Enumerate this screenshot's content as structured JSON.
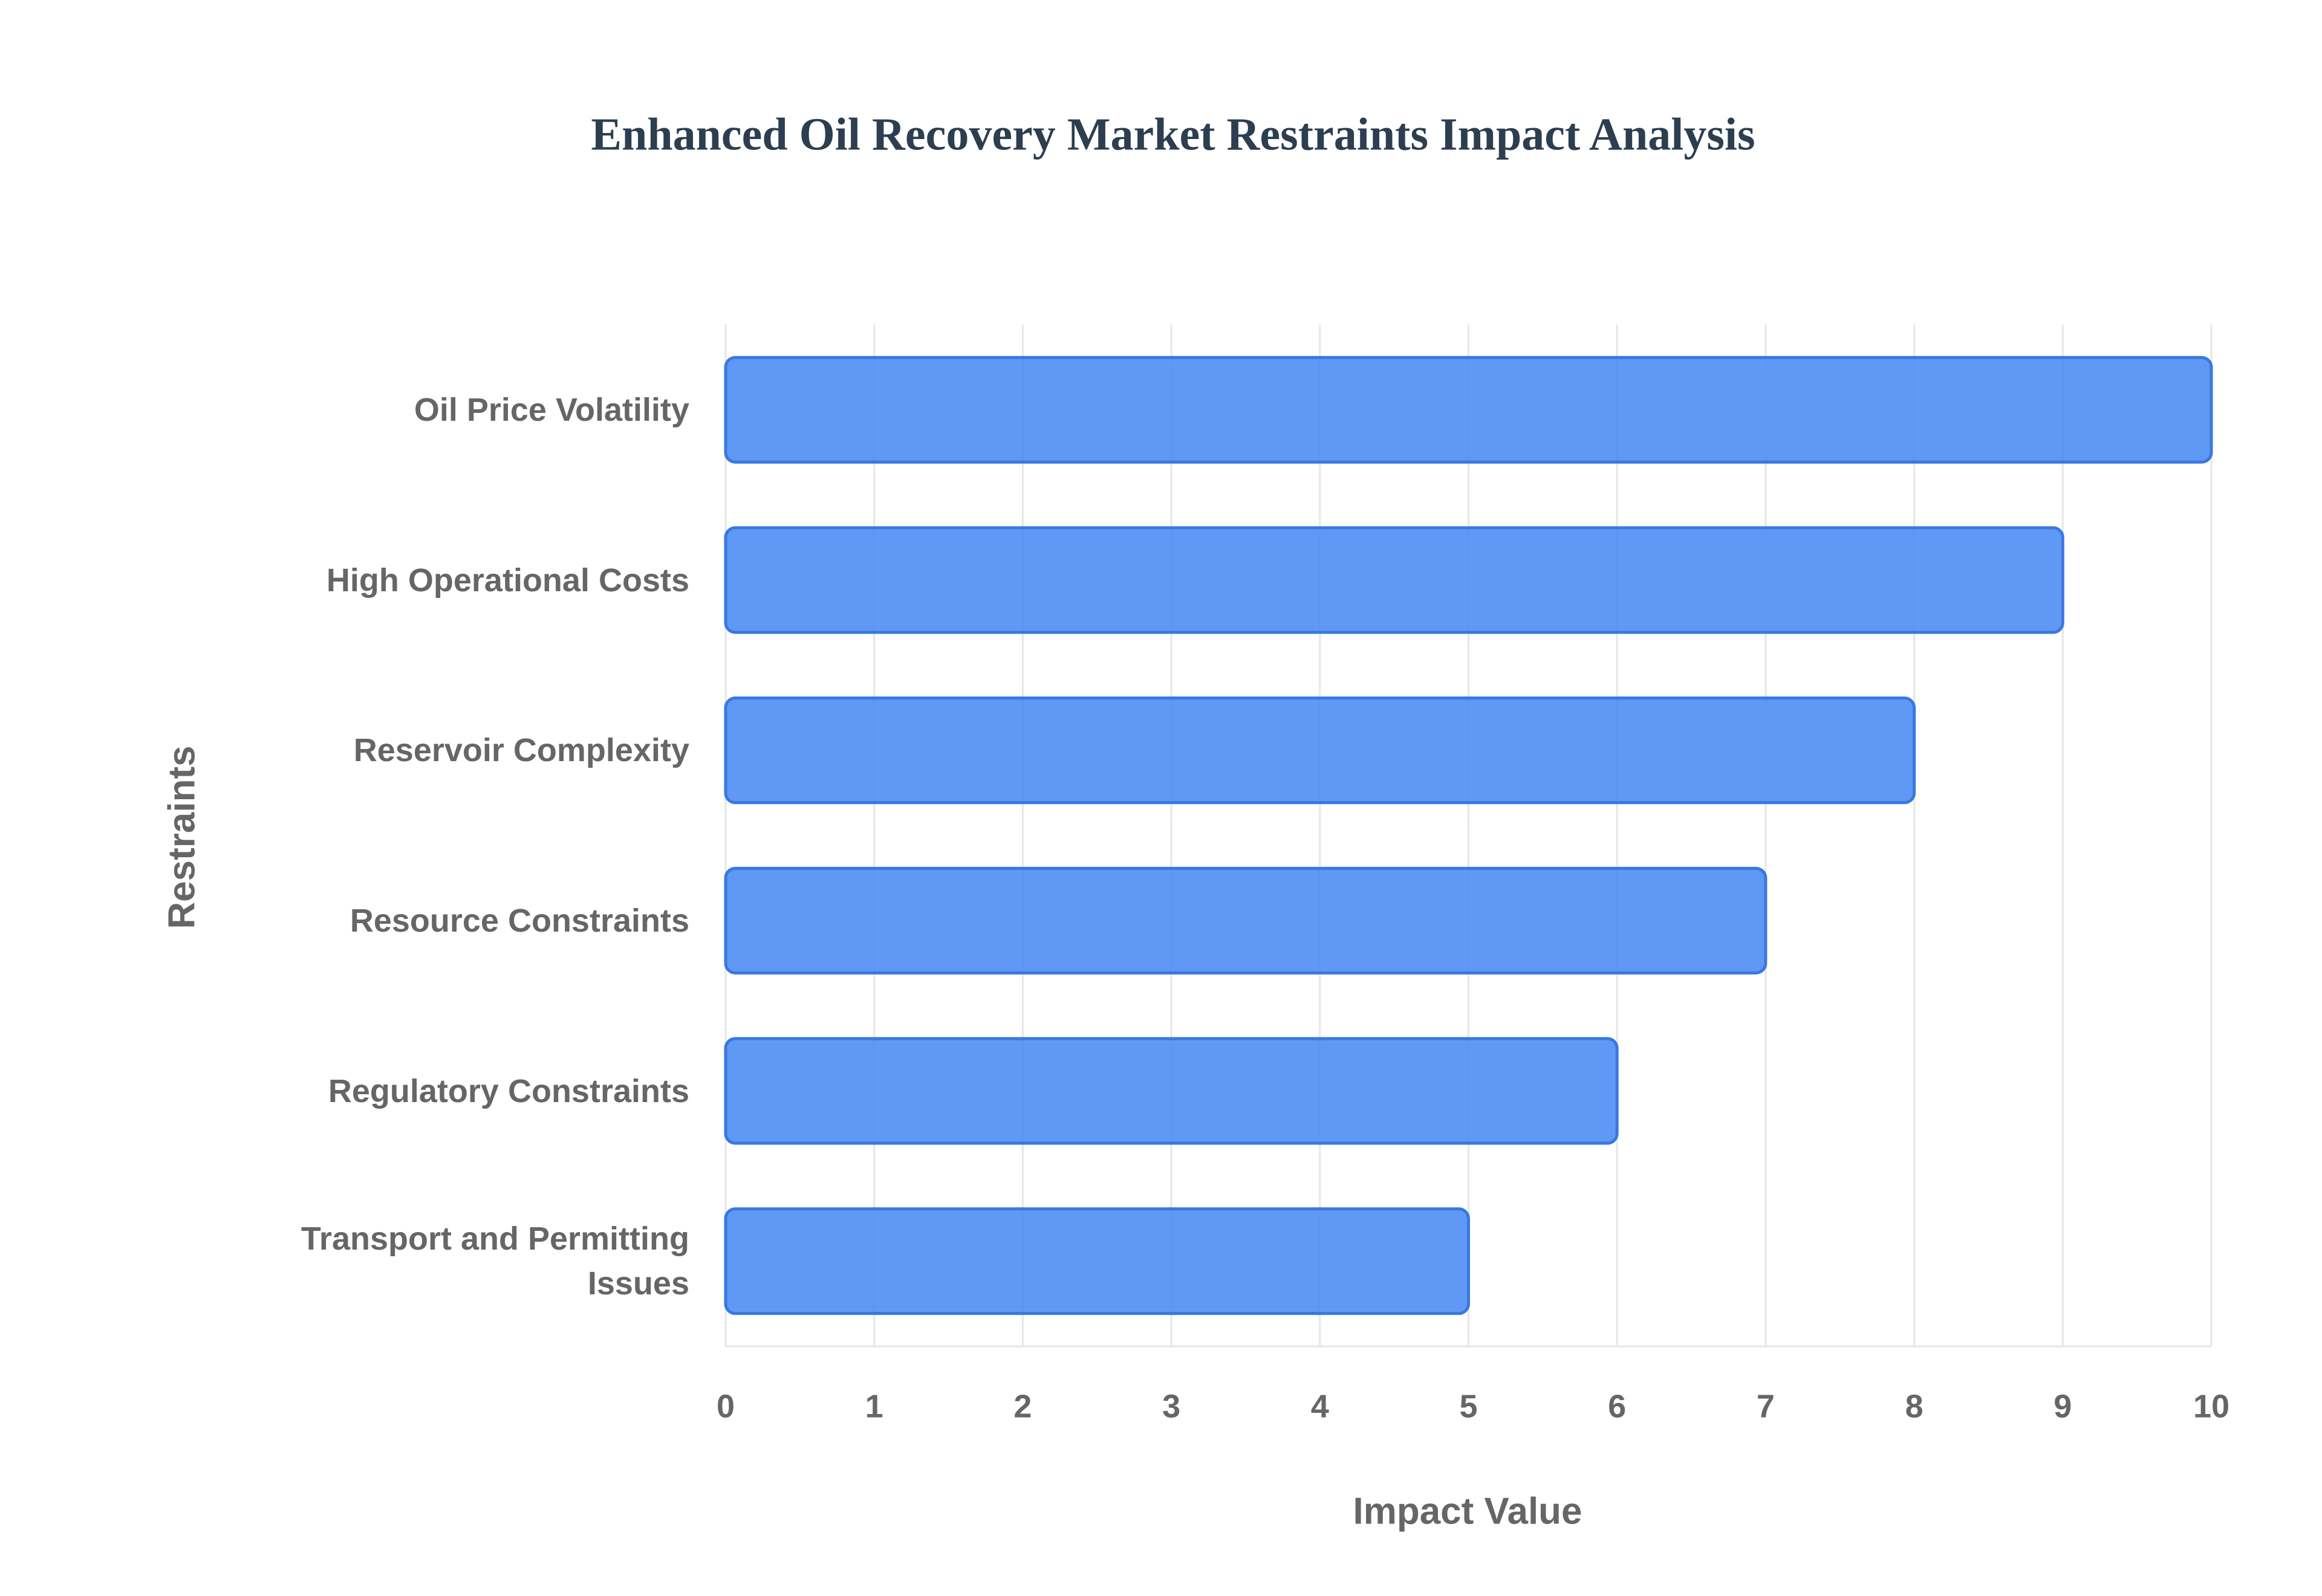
{
  "chart_data": {
    "type": "hbar",
    "title": "Enhanced Oil Recovery Market Restraints Impact Analysis",
    "x_label": "Impact Value",
    "y_label": "Restraints",
    "categories": [
      "Oil Price Volatility",
      "High Operational Costs",
      "Reservoir Complexity",
      "Resource Constraints",
      "Regulatory Constraints",
      "Transport and Permitting Issues"
    ],
    "values": [
      10,
      9,
      8,
      7,
      6,
      5
    ],
    "color": "#4a8af4",
    "xlim": [
      0,
      10
    ],
    "xticks": [
      0,
      1,
      2,
      3,
      4,
      5,
      6,
      7,
      8,
      9,
      10
    ],
    "grid": true
  }
}
